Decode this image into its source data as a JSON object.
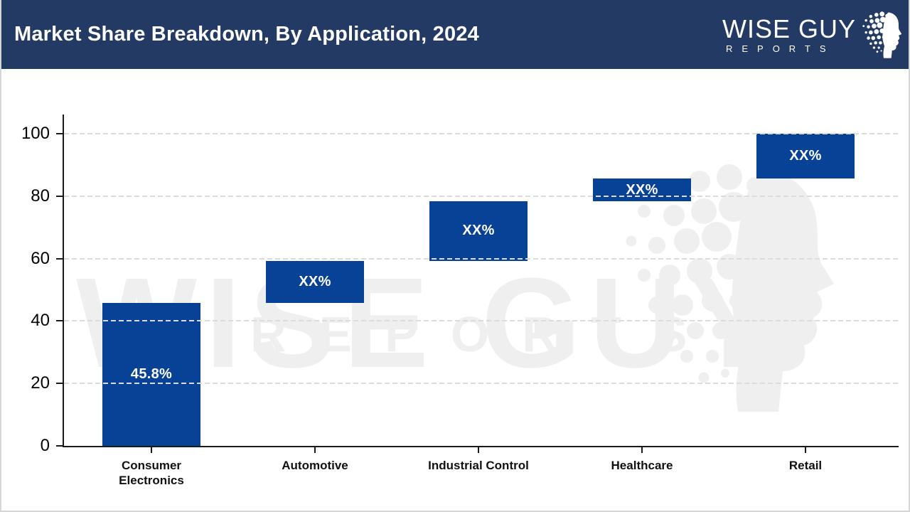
{
  "header": {
    "title": "Market Share Breakdown, By Application, 2024",
    "logo": {
      "line1": "WISE GUY",
      "line2": "REPORTS"
    }
  },
  "watermark": {
    "line1": "WISE GUY",
    "line2": "REPORTS"
  },
  "colors": {
    "header_bg": "#223a64",
    "bar": "#084296",
    "grid": "#dcdcdc",
    "axis": "#1a1a1a",
    "watermark": "#efefef",
    "value_label": "#ffffff"
  },
  "chart_data": {
    "type": "bar",
    "subtype": "waterfall",
    "title": "Market Share Breakdown, By Application, 2024",
    "xlabel": "",
    "ylabel": "",
    "ylim": [
      0,
      100
    ],
    "y_ticks": [
      0,
      20,
      40,
      60,
      80,
      100
    ],
    "grid": true,
    "gridline_style": "dashed",
    "legend_position": "none",
    "categories": [
      "Consumer Electronics",
      "Automotive",
      "Industrial Control",
      "Healthcare",
      "Retail"
    ],
    "categories_display": [
      "Consumer\nElectronics",
      "Automotive",
      "Industrial Control",
      "Healthcare",
      "Retail"
    ],
    "segments": [
      {
        "category": "Consumer Electronics",
        "start": 0,
        "end": 45.8,
        "value": 45.8,
        "label": "45.8%"
      },
      {
        "category": "Automotive",
        "start": 45.8,
        "end": 59.2,
        "value": 13.4,
        "label": "XX%"
      },
      {
        "category": "Industrial Control",
        "start": 59.2,
        "end": 78.4,
        "value": 19.2,
        "label": "XX%"
      },
      {
        "category": "Healthcare",
        "start": 78.4,
        "end": 85.6,
        "value": 7.2,
        "label": "XX%"
      },
      {
        "category": "Retail",
        "start": 85.6,
        "end": 100.0,
        "value": 14.4,
        "label": "XX%"
      }
    ]
  }
}
